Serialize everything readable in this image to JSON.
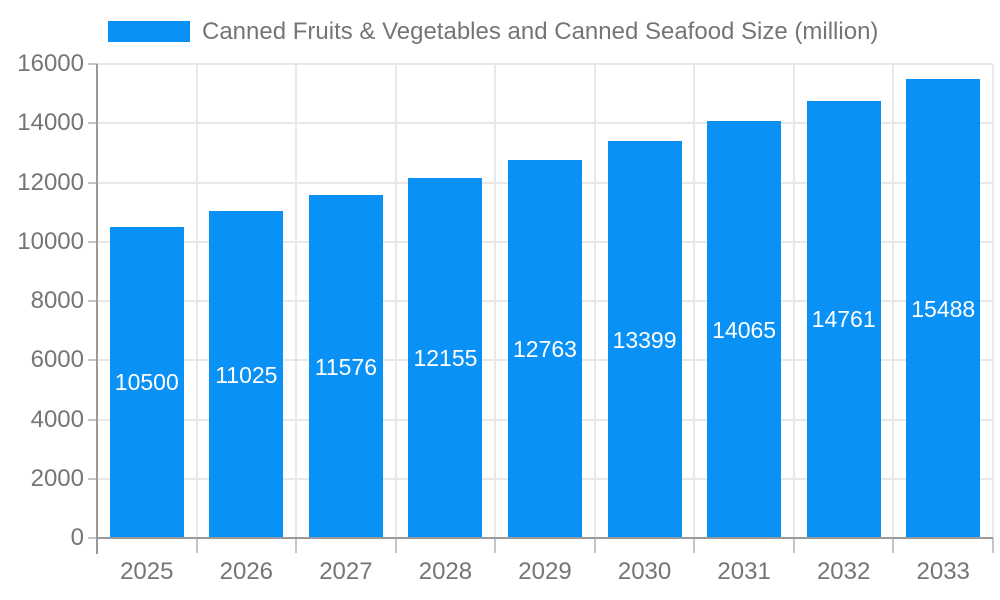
{
  "chart_data": {
    "type": "bar",
    "legend": "Canned Fruits & Vegetables and Canned Seafood Size (million)",
    "legend_position": "top",
    "categories": [
      "2025",
      "2026",
      "2027",
      "2028",
      "2029",
      "2030",
      "2031",
      "2032",
      "2033"
    ],
    "series": [
      {
        "name": "Canned Fruits & Vegetables and Canned Seafood Size (million)",
        "values": [
          10500,
          11025,
          11576,
          12155,
          12763,
          13399,
          14065,
          14761,
          15488
        ]
      }
    ],
    "bar_labels_visible": true,
    "xlabel": "",
    "ylabel": "",
    "ylim": [
      0,
      16000
    ],
    "ytick_step": 2000,
    "yticks": [
      0,
      2000,
      4000,
      6000,
      8000,
      10000,
      12000,
      14000,
      16000
    ],
    "grid": true,
    "colors": {
      "bar": "#0991f5",
      "bar_label": "#ffffff",
      "axis_line": "#9a9a9a",
      "tick_mark": "#c6c6c6",
      "gridline": "#e8e8e8",
      "tick_label": "#757575",
      "legend_text": "#757575",
      "background": "#ffffff"
    }
  }
}
